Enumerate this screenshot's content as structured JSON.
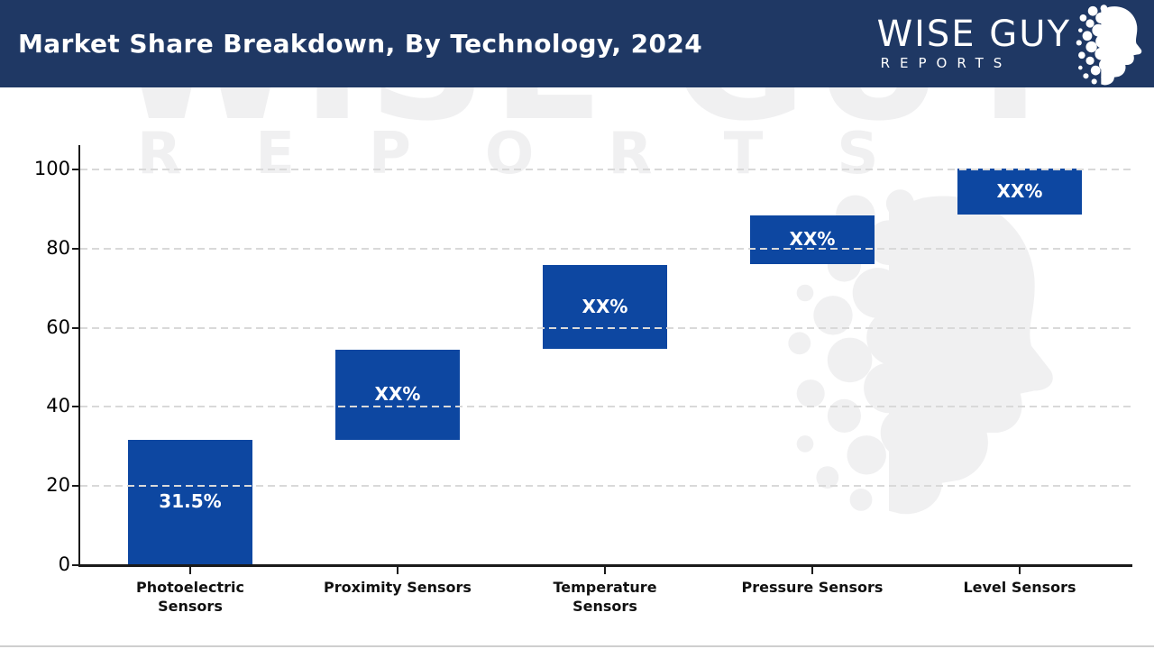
{
  "header": {
    "title": "Market Share Breakdown, By Technology, 2024",
    "bg_color": "#1f3864",
    "brand": {
      "name_top": "WISE GUY",
      "name_bottom": "REPORTS"
    }
  },
  "watermark": {
    "line1": "WISE GUY",
    "line2": "REPORTS"
  },
  "chart_data": {
    "type": "bar",
    "subtype": "waterfall",
    "title": "Market Share Breakdown, By Technology, 2024",
    "categories": [
      "Photoelectric Sensors",
      "Proximity Sensors",
      "Temperature Sensors",
      "Pressure Sensors",
      "Level Sensors"
    ],
    "segments": [
      {
        "category": "Photoelectric Sensors",
        "start": 0,
        "end": 31.5,
        "label": "31.5%"
      },
      {
        "category": "Proximity Sensors",
        "start": 31.5,
        "end": 54.4,
        "label": "XX%"
      },
      {
        "category": "Temperature Sensors",
        "start": 54.6,
        "end": 75.9,
        "label": "XX%"
      },
      {
        "category": "Pressure Sensors",
        "start": 76.1,
        "end": 88.4,
        "label": "XX%"
      },
      {
        "category": "Level Sensors",
        "start": 88.6,
        "end": 100.2,
        "label": "XX%"
      }
    ],
    "yticks": [
      0,
      20,
      40,
      60,
      80,
      100
    ],
    "ylim": [
      0,
      106
    ],
    "xlabel": "",
    "ylabel": "",
    "grid": "horizontal-dashed",
    "legend": "none",
    "bar_color": "#0d47a1",
    "bar_label_color": "#ffffff"
  }
}
